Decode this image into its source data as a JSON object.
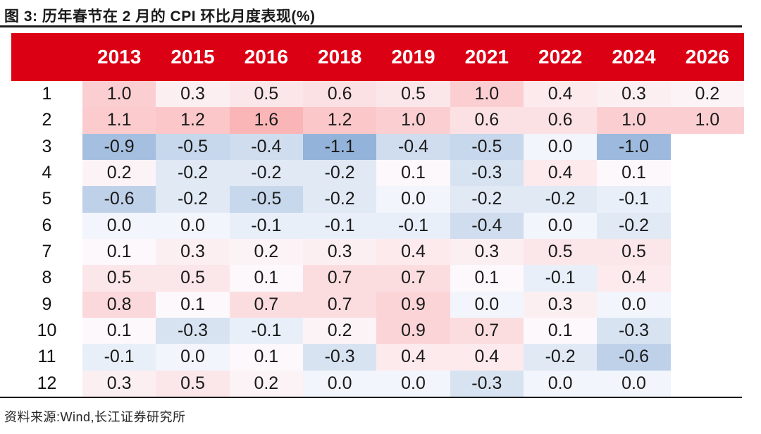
{
  "figure": {
    "title": "图 3: 历年春节在 2 月的 CPI 环比月度表现(%)",
    "source": "资料来源:Wind,长江证券研究所"
  },
  "colors": {
    "header_bg": "#DC0014",
    "header_text": "#FFFFFF",
    "rule": "#1A1A1A",
    "cell_text": "#1A1A1A"
  },
  "chart_data": {
    "type": "heatmap",
    "title": "图 3: 历年春节在 2 月的 CPI 环比月度表现(%)",
    "unit": "%",
    "columns": [
      "2013",
      "2015",
      "2016",
      "2018",
      "2019",
      "2021",
      "2022",
      "2024",
      "2026"
    ],
    "row_labels": [
      "1",
      "2",
      "3",
      "4",
      "5",
      "6",
      "7",
      "8",
      "9",
      "10",
      "11",
      "12"
    ],
    "rows": [
      [
        1.0,
        0.3,
        0.5,
        0.6,
        0.5,
        1.0,
        0.4,
        0.3,
        0.2
      ],
      [
        1.1,
        1.2,
        1.6,
        1.2,
        1.0,
        0.6,
        0.6,
        1.0,
        1.0
      ],
      [
        -0.9,
        -0.5,
        -0.4,
        -1.1,
        -0.4,
        -0.5,
        0.0,
        -1.0,
        null
      ],
      [
        0.2,
        -0.2,
        -0.2,
        -0.2,
        0.1,
        -0.3,
        0.4,
        0.1,
        null
      ],
      [
        -0.6,
        -0.2,
        -0.5,
        -0.2,
        0.0,
        -0.2,
        -0.2,
        -0.1,
        null
      ],
      [
        0.0,
        0.0,
        -0.1,
        -0.1,
        -0.1,
        -0.4,
        0.0,
        -0.2,
        null
      ],
      [
        0.1,
        0.3,
        0.2,
        0.3,
        0.4,
        0.3,
        0.5,
        0.5,
        null
      ],
      [
        0.5,
        0.5,
        0.1,
        0.7,
        0.7,
        0.1,
        -0.1,
        0.4,
        null
      ],
      [
        0.8,
        0.1,
        0.7,
        0.7,
        0.9,
        0.0,
        0.3,
        0.0,
        null
      ],
      [
        0.1,
        -0.3,
        -0.1,
        0.2,
        0.9,
        0.7,
        0.1,
        -0.3,
        null
      ],
      [
        -0.1,
        0.0,
        0.1,
        -0.3,
        0.4,
        0.4,
        -0.2,
        -0.6,
        null
      ],
      [
        0.3,
        0.5,
        0.2,
        0.0,
        0.0,
        -0.3,
        0.0,
        0.0,
        null
      ]
    ],
    "color_scale": {
      "positive_end": "#F8696B",
      "negative_end": "#5A8AC6",
      "neutral": "#FCFCFF",
      "positive_span": 3.3,
      "negative_span": 1.9,
      "zero_offset": 0.12
    },
    "legend": "red = positive MoM, blue = negative MoM, intensity by magnitude"
  }
}
